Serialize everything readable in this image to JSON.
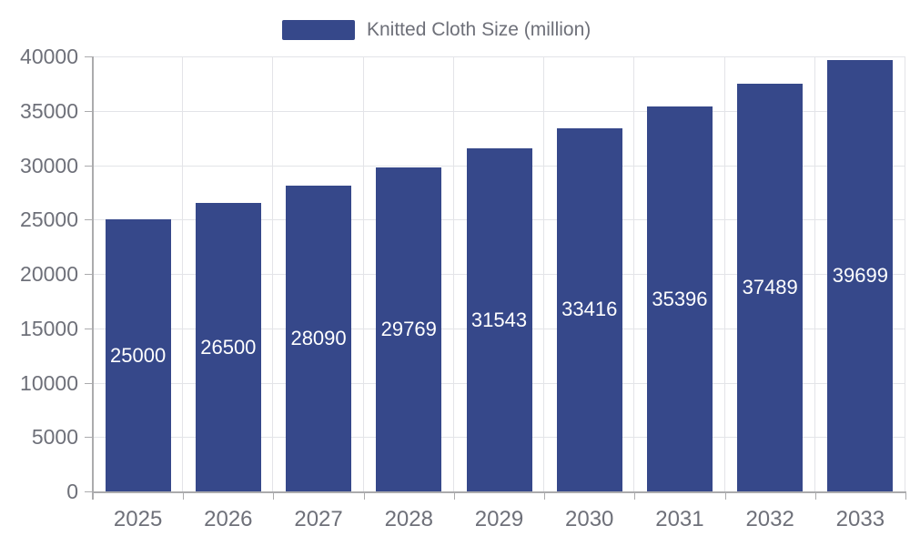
{
  "legend": {
    "label": "Knitted Cloth Size (million)"
  },
  "colors": {
    "bar": "#36488a",
    "grid": "#e3e4e8",
    "axis": "#ababad",
    "tick_label": "#6e7079",
    "legend_text": "#6e7079",
    "value_label": "#ffffff",
    "background": "#ffffff"
  },
  "chart_data": {
    "type": "bar",
    "title": "",
    "categories": [
      "2025",
      "2026",
      "2027",
      "2028",
      "2029",
      "2030",
      "2031",
      "2032",
      "2033"
    ],
    "series": [
      {
        "name": "Knitted Cloth Size (million)",
        "values": [
          25000,
          26500,
          28090,
          29769,
          31543,
          33416,
          35396,
          37489,
          39699
        ]
      }
    ],
    "xlabel": "",
    "ylabel": "",
    "ylim": [
      0,
      40000
    ],
    "ytick_step": 5000,
    "ytick_labels": [
      "0",
      "5000",
      "10000",
      "15000",
      "20000",
      "25000",
      "30000",
      "35000",
      "40000"
    ],
    "grid": true,
    "legend_position": "top-center",
    "value_labels": "inside-center"
  }
}
